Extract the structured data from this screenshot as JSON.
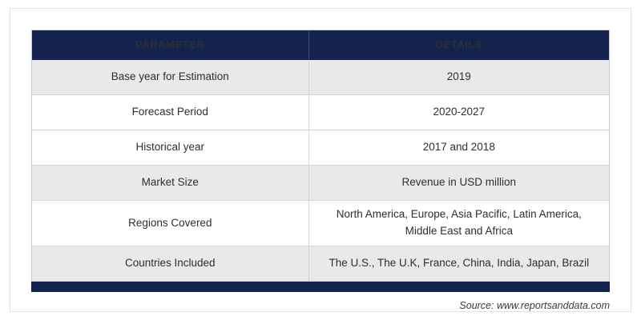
{
  "table": {
    "headers": {
      "parameter": "PARAMETER",
      "details": "DETAILS"
    },
    "rows": [
      {
        "parameter": "Base year for Estimation",
        "details": "2019"
      },
      {
        "parameter": "Forecast Period",
        "details": "2020-2027"
      },
      {
        "parameter": "Historical year",
        "details": "2017 and 2018"
      },
      {
        "parameter": "Market Size",
        "details": "Revenue in USD million"
      },
      {
        "parameter": "Regions Covered",
        "details": "North America, Europe, Asia Pacific, Latin America, Middle East and Africa"
      },
      {
        "parameter": "Countries Included",
        "details": "The U.S., The  U.K, France, China, India, Japan, Brazil"
      }
    ]
  },
  "source": {
    "label": "Source: www.reportsanddata.com"
  },
  "colors": {
    "header_bg": "#14224e",
    "row_alt_bg": "#e9e9ea",
    "border": "#d6d6d6"
  }
}
